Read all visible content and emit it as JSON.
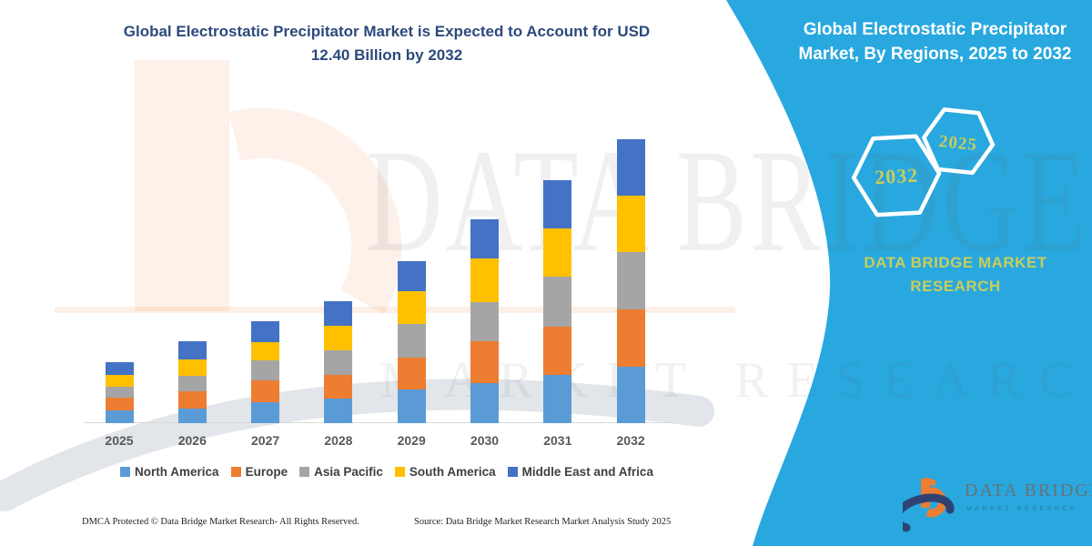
{
  "page": {
    "bg": "#ffffff",
    "panel_color": "#28A8DF"
  },
  "left": {
    "title_line1": "Global Electrostatic Precipitator Market is Expected to Account for USD",
    "title_line2": "12.40 Billion by 2032",
    "title_color": "#2C4A7C"
  },
  "chart_data": {
    "type": "bar",
    "stacked": true,
    "title": "Global Electrostatic Precipitator Market is Expected to Account for USD 12.40 Billion by 2032",
    "unit": "USD Billion (values estimated from bar heights; 2032 total stated as 12.40)",
    "categories": [
      "2025",
      "2026",
      "2027",
      "2028",
      "2029",
      "2030",
      "2031",
      "2032"
    ],
    "series": [
      {
        "name": "North America",
        "color": "#5B9BD5",
        "values": [
          0.56,
          0.64,
          0.91,
          1.07,
          1.47,
          1.75,
          2.11,
          2.48
        ]
      },
      {
        "name": "Europe",
        "color": "#ED7D31",
        "values": [
          0.56,
          0.76,
          0.95,
          1.03,
          1.39,
          1.83,
          2.11,
          2.5
        ]
      },
      {
        "name": "Asia Pacific",
        "color": "#A5A5A5",
        "values": [
          0.48,
          0.68,
          0.87,
          1.07,
          1.47,
          1.71,
          2.19,
          2.5
        ]
      },
      {
        "name": "South America",
        "color": "#FFC000",
        "values": [
          0.52,
          0.72,
          0.79,
          1.07,
          1.43,
          1.91,
          2.11,
          2.46
        ]
      },
      {
        "name": "Middle East and Africa",
        "color": "#4472C4",
        "values": [
          0.56,
          0.79,
          0.95,
          1.11,
          1.31,
          1.71,
          2.11,
          2.46
        ]
      }
    ],
    "totals": [
      2.68,
      3.59,
      4.47,
      5.35,
      7.07,
      8.91,
      10.63,
      12.4
    ],
    "ylim": [
      0,
      12.4
    ],
    "grid": "off",
    "y_axis_labels": "none shown",
    "legend_position": "bottom"
  },
  "footer": {
    "left": "DMCA Protected © Data Bridge Market Research-  All Rights Reserved.",
    "right": "Source: Data Bridge Market Research  Market Analysis Study 2025"
  },
  "right_panel": {
    "title_line1": "Global Electrostatic Precipitator",
    "title_line2": "Market, By Regions, 2025 to 2032",
    "hexagon_large_label": "2032",
    "hexagon_small_label": "2025",
    "hex_label_color": "#C9CD5B",
    "brand_line1": "DATA BRIDGE MARKET",
    "brand_line2": "RESEARCH",
    "logo_text": "DATA BRIDGE",
    "logo_subtext": "MARKET RESEARCH"
  },
  "watermark": {
    "row1": "DATA BRIDGE",
    "row2": "MARKET RESEARCH"
  }
}
